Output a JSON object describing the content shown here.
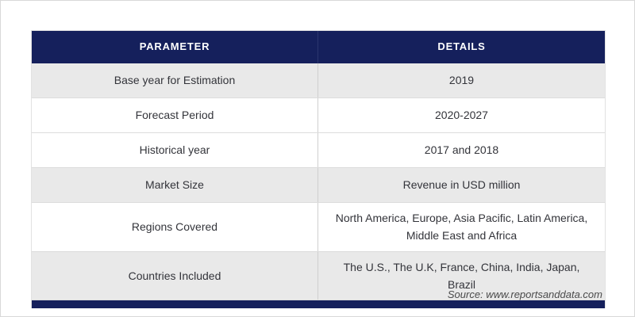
{
  "chart_data": {
    "type": "table",
    "title": "",
    "columns": [
      "PARAMETER",
      "DETAILS"
    ],
    "rows": [
      {
        "parameter": "Base year for Estimation",
        "details": "2019"
      },
      {
        "parameter": "Forecast Period",
        "details": "2020-2027"
      },
      {
        "parameter": "Historical year",
        "details": "2017 and 2018"
      },
      {
        "parameter": "Market Size",
        "details": "Revenue in USD million"
      },
      {
        "parameter": "Regions Covered",
        "details": "North America, Europe, Asia Pacific, Latin America, Middle East and Africa"
      },
      {
        "parameter": "Countries Included",
        "details": "The U.S., The  U.K, France, China, India, Japan, Brazil"
      }
    ],
    "header_bg_color": "#15205c",
    "shaded_row_color": "#e9e9e9",
    "legend_position": "none",
    "grid": true
  },
  "footer": {
    "source": "Source: www.reportsanddata.com"
  }
}
